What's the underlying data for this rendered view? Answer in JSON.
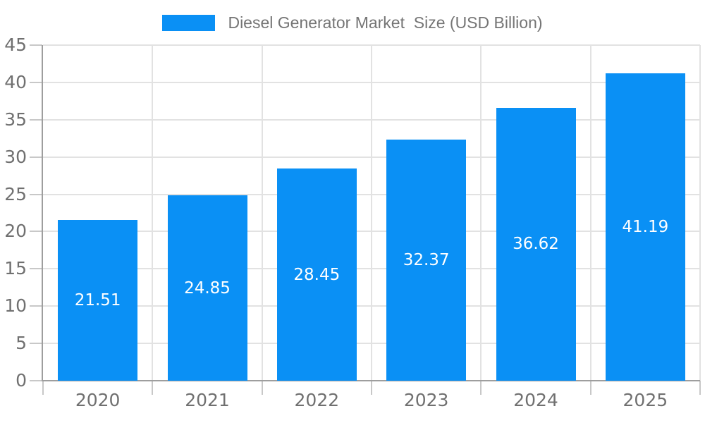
{
  "legend": {
    "label": "Diesel Generator Market  Size (USD Billion)"
  },
  "chart_data": {
    "type": "bar",
    "title": "Diesel Generator Market  Size (USD Billion)",
    "categories": [
      "2020",
      "2021",
      "2022",
      "2023",
      "2024",
      "2025"
    ],
    "values": [
      21.51,
      24.85,
      28.45,
      32.37,
      36.62,
      41.19
    ],
    "xlabel": "",
    "ylabel": "",
    "ylim": [
      0,
      45
    ],
    "ytick_step": 5,
    "grid": true,
    "legend_position": "top-center",
    "colors": {
      "bar": "#0A90F5",
      "grid": "#E2E2E2",
      "axis": "#9E9E9E",
      "tick": "#C8C8C8",
      "tick_label": "#707070",
      "title": "#757575",
      "value_label": "#FFFFFF"
    }
  }
}
